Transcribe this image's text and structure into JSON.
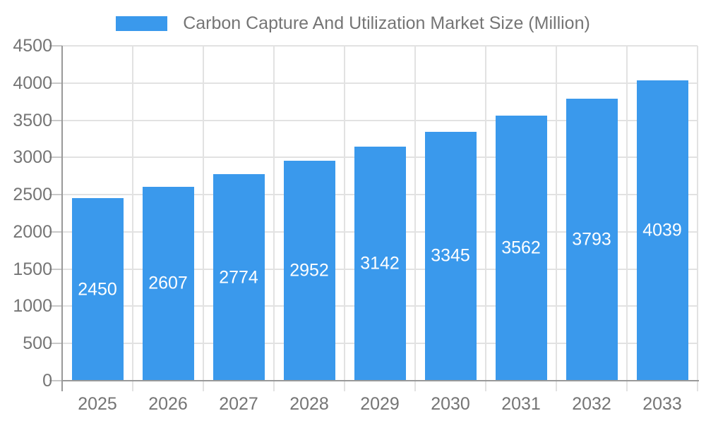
{
  "chart_data": {
    "type": "bar",
    "title": "Carbon Capture And Utilization Market Size (Million)",
    "categories": [
      "2025",
      "2026",
      "2027",
      "2028",
      "2029",
      "2030",
      "2031",
      "2032",
      "2033"
    ],
    "values": [
      2450,
      2607,
      2774,
      2952,
      3142,
      3345,
      3562,
      3793,
      4039
    ],
    "series": [
      {
        "name": "Carbon Capture And Utilization Market Size (Million)",
        "values": [
          2450,
          2607,
          2774,
          2952,
          3142,
          3345,
          3562,
          3793,
          4039
        ]
      }
    ],
    "xlabel": "",
    "ylabel": "",
    "ylim": [
      0,
      4500
    ],
    "ytick_interval": 500,
    "ytick_labels": [
      "0",
      "500",
      "1000",
      "1500",
      "2000",
      "2500",
      "3000",
      "3500",
      "4000",
      "4500"
    ],
    "grid": true,
    "legend_position": "top-center",
    "value_label_position": "inside-middle"
  },
  "colors": {
    "bar": "#3A99EC",
    "grid": "#E2E2E2",
    "tick": "#C8C8C8",
    "axis": "#999999",
    "text": "#757575",
    "value_label": "#FFFFFF",
    "background": "#FFFFFF"
  }
}
